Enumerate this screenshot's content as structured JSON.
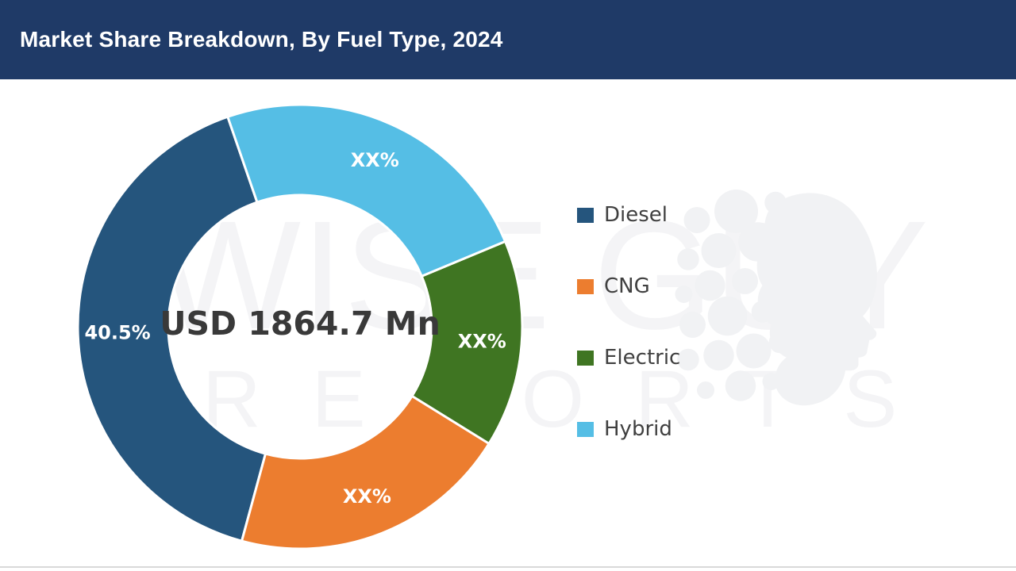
{
  "header": {
    "title": "Market Share Breakdown, By Fuel Type, 2024"
  },
  "logo": {
    "line1": "WISE GUY",
    "line2": "REPORTS"
  },
  "watermark": {
    "line1": "WISE GUY",
    "line2": "REPORTS"
  },
  "chart_data": {
    "type": "pie",
    "subtype": "donut",
    "title": "Market Share Breakdown, By Fuel Type, 2024",
    "center_text": "USD 1864.7 Mn",
    "start_angle_deg": 109,
    "direction": "counterclockwise",
    "legend_position": "right",
    "segments": [
      {
        "label": "Diesel",
        "value_pct": 40.5,
        "display_label": "40.5%",
        "color": "#25557D"
      },
      {
        "label": "CNG",
        "value_pct": 20.4,
        "display_label": "XX%",
        "color": "#EC7D2F"
      },
      {
        "label": "Electric",
        "value_pct": 15.1,
        "display_label": "XX%",
        "color": "#3F7522"
      },
      {
        "label": "Hybrid",
        "value_pct": 24.0,
        "display_label": "XX%",
        "color": "#55BEE5"
      }
    ]
  },
  "colors": {
    "header_bg": "#1F3A67",
    "center_text": "#393939",
    "legend_text": "#404040",
    "watermark": "#F4F4F6"
  }
}
